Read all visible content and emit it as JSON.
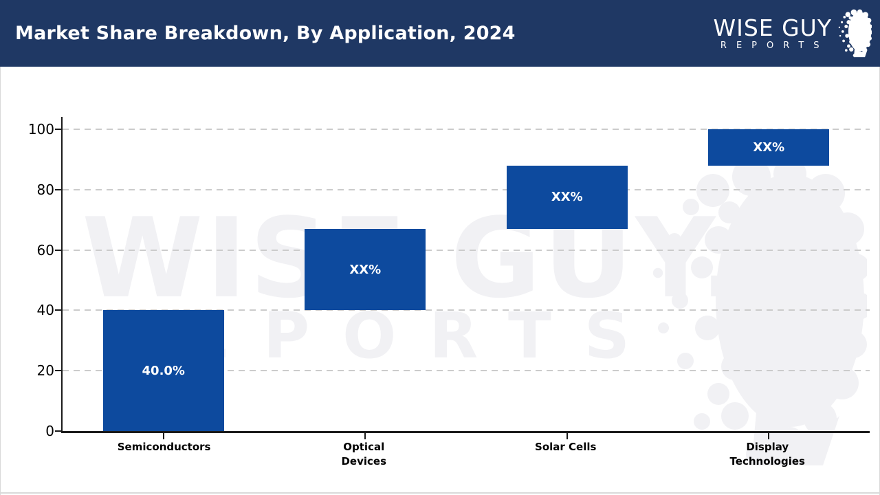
{
  "header": {
    "title": "Market Share Breakdown, By Application, 2024",
    "logo": {
      "line1": "WISE GUY",
      "line2": "REPORTS"
    }
  },
  "watermark": {
    "line1": "WISE GUY.",
    "line2": "REPORTS"
  },
  "chart_data": {
    "type": "bar",
    "subtype": "stacked-waterfall",
    "title": "Market Share Breakdown, By Application, 2024",
    "xlabel": "",
    "ylabel": "",
    "ylim": [
      0,
      100
    ],
    "yticks": [
      0,
      20,
      40,
      60,
      80,
      100
    ],
    "grid": "dashed-horizontal",
    "legend": "none",
    "categories": [
      "Semiconductors",
      "Optical Devices",
      "Solar Cells",
      "Display Technologies"
    ],
    "segments": [
      {
        "category": "Semiconductors",
        "start": 0,
        "end": 40,
        "label": "40.0%"
      },
      {
        "category": "Optical Devices",
        "start": 40,
        "end": 67,
        "label": "XX%"
      },
      {
        "category": "Solar Cells",
        "start": 67,
        "end": 88,
        "label": "XX%"
      },
      {
        "category": "Display Technologies",
        "start": 88,
        "end": 100,
        "label": "XX%"
      }
    ]
  },
  "colors": {
    "header_bg": "#1f3864",
    "bar": "#0d4a9e",
    "axis": "#1a1a1a",
    "grid": "#cbcbcb",
    "watermark": "#f1f1f4",
    "bar_label": "#ffffff"
  }
}
